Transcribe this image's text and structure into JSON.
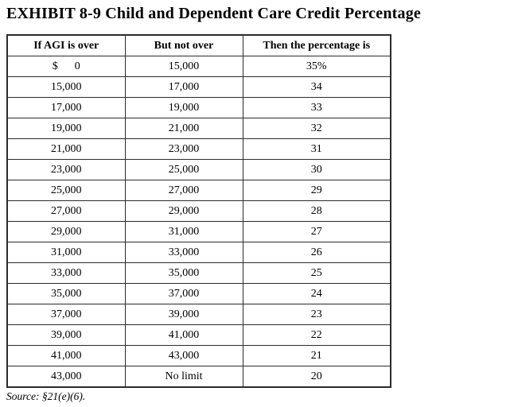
{
  "title": "EXHIBIT 8-9 Child and Dependent Care Credit Percentage",
  "table": {
    "headers": [
      "If AGI is over",
      "But not over",
      "Then the percentage is"
    ],
    "rows": [
      [
        "$      0",
        "15,000",
        "35%"
      ],
      [
        "15,000",
        "17,000",
        "34"
      ],
      [
        "17,000",
        "19,000",
        "33"
      ],
      [
        "19,000",
        "21,000",
        "32"
      ],
      [
        "21,000",
        "23,000",
        "31"
      ],
      [
        "23,000",
        "25,000",
        "30"
      ],
      [
        "25,000",
        "27,000",
        "29"
      ],
      [
        "27,000",
        "29,000",
        "28"
      ],
      [
        "29,000",
        "31,000",
        "27"
      ],
      [
        "31,000",
        "33,000",
        "26"
      ],
      [
        "33,000",
        "35,000",
        "25"
      ],
      [
        "35,000",
        "37,000",
        "24"
      ],
      [
        "37,000",
        "39,000",
        "23"
      ],
      [
        "39,000",
        "41,000",
        "22"
      ],
      [
        "41,000",
        "43,000",
        "21"
      ],
      [
        "43,000",
        "No limit",
        "20"
      ]
    ]
  },
  "source": "Source: §21(e)(6)."
}
